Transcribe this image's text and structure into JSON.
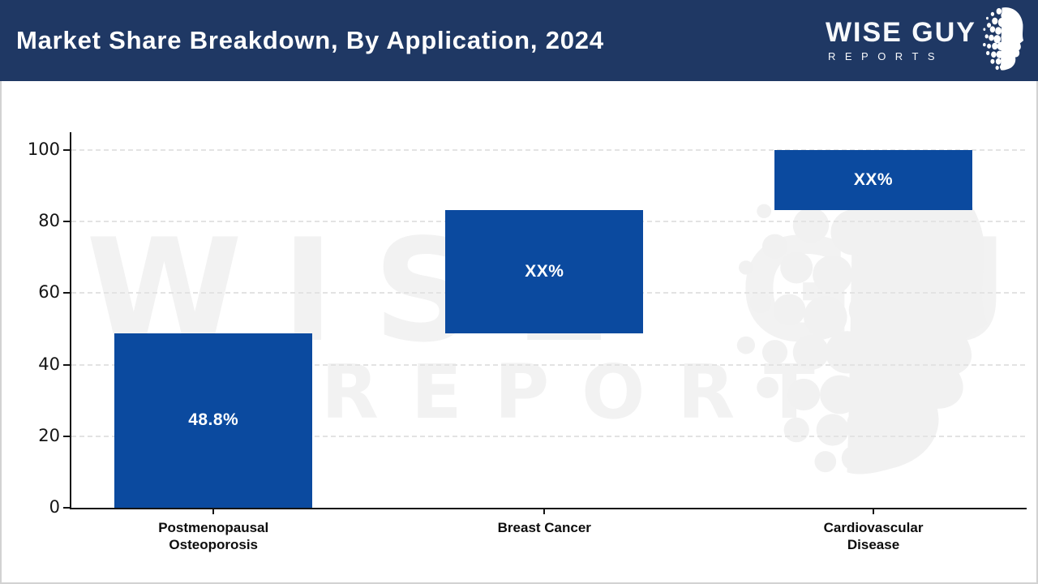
{
  "header": {
    "title": "Market Share Breakdown, By Application, 2024",
    "logo": {
      "line1": "WISE GUY",
      "line2": "REPORTS"
    }
  },
  "watermark": {
    "line1": "WISE GUY",
    "line2": "REPORTS"
  },
  "icons": {
    "logo_head": "dotted-head-profile-icon",
    "watermark_head": "dotted-head-profile-icon"
  },
  "colors": {
    "header_bg": "#1f3864",
    "bar": "#0b4a9f",
    "bar_label": "#ffffff",
    "axis": "#141414",
    "gridline": "#e3e3e3",
    "watermark": "#f2f2f2",
    "frame_border": "#d2d2d2",
    "title_text": "#ffffff"
  },
  "chart_data": {
    "type": "bar",
    "subtype": "waterfall",
    "title": "Market Share Breakdown, By Application, 2024",
    "xlabel": "",
    "ylabel": "",
    "categories": [
      "Postmenopausal\nOsteoporosis",
      "Breast Cancer",
      "Cardiovascular\nDisease"
    ],
    "series": [
      {
        "name": "Market Share (%)",
        "segments": [
          {
            "start": 0,
            "end": 48.8,
            "value": 48.8,
            "label": "48.8%"
          },
          {
            "start": 48.8,
            "end": 83.2,
            "value": 34.4,
            "label": "XX%"
          },
          {
            "start": 83.2,
            "end": 100,
            "value": 16.8,
            "label": "XX%"
          }
        ]
      }
    ],
    "ylim": [
      0,
      105
    ],
    "yticks": [
      0,
      20,
      40,
      60,
      80,
      100
    ],
    "grid": "horizontal dashed",
    "legend": "none"
  }
}
